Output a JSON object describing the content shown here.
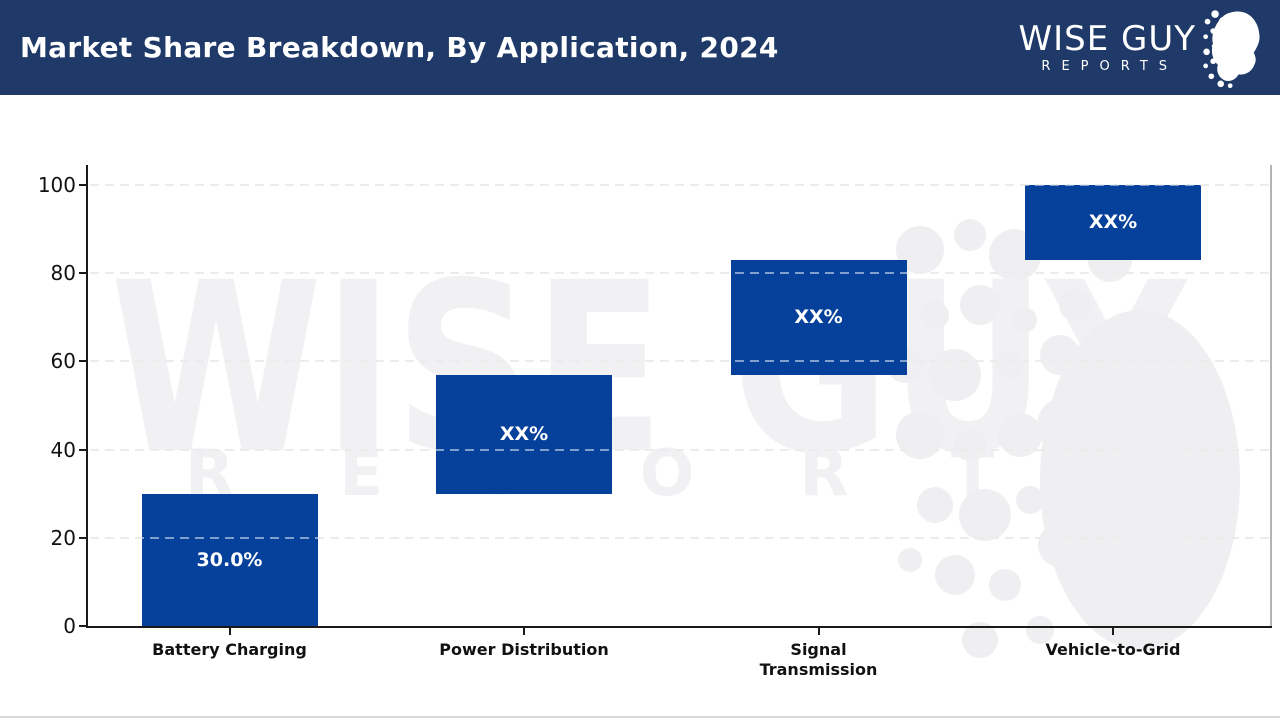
{
  "header": {
    "title": "Market Share Breakdown, By Application, 2024"
  },
  "logo": {
    "name": "WISE GUY",
    "sub": "REPORTS"
  },
  "watermark": {
    "name": "WISE GUY",
    "sub": "REPORTS"
  },
  "colors": {
    "header_bg": "#1F3A68",
    "bar": "#05409B",
    "grid": "#D8D8D8",
    "grid_over_bar": "rgba(255,255,255,0.5)",
    "axis": "#1A1A1A",
    "right_spine": "#B5B5B5",
    "watermark": "#F1F1F4",
    "title_text": "#FFFFFF",
    "tick_text": "#111111"
  },
  "chart_data": {
    "type": "bar",
    "subtype": "waterfall",
    "title": "Market Share Breakdown, By Application, 2024",
    "categories": [
      "Battery Charging",
      "Power Distribution",
      "Signal Transmission",
      "Vehicle-to-Grid"
    ],
    "category_lines": [
      [
        "Battery Charging"
      ],
      [
        "Power Distribution"
      ],
      [
        "Signal",
        "Transmission"
      ],
      [
        "Vehicle-to-Grid"
      ]
    ],
    "segments": [
      {
        "category": "Battery Charging",
        "label": "30.0%",
        "start": 0,
        "end": 30
      },
      {
        "category": "Power Distribution",
        "label": "XX%",
        "start": 30,
        "end": 57
      },
      {
        "category": "Signal Transmission",
        "label": "XX%",
        "start": 57,
        "end": 83
      },
      {
        "category": "Vehicle-to-Grid",
        "label": "XX%",
        "start": 83,
        "end": 100
      }
    ],
    "xlabel": "",
    "ylabel": "",
    "ylim": [
      0,
      100
    ],
    "yticks": [
      0,
      20,
      40,
      60,
      80,
      100
    ],
    "bar_color": "#05409B",
    "grid": "dashed-horizontal",
    "legend": null
  }
}
